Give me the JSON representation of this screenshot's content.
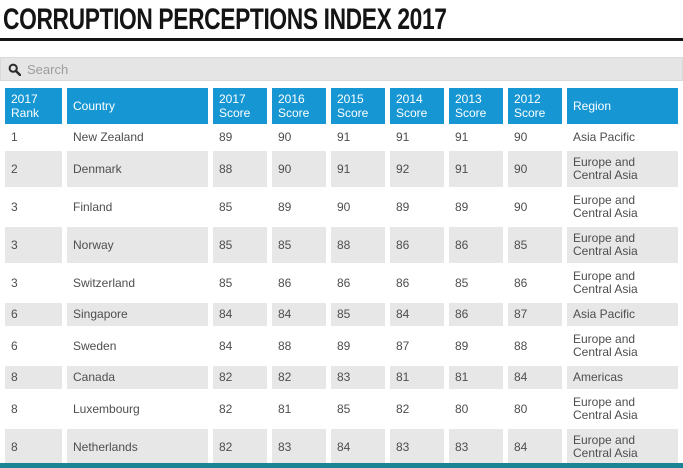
{
  "title": "CORRUPTION PERCEPTIONS INDEX 2017",
  "search": {
    "placeholder": "Search",
    "icon": "magnifier"
  },
  "table": {
    "columns": [
      "2017 Rank",
      "Country",
      "2017 Score",
      "2016 Score",
      "2015 Score",
      "2014 Score",
      "2013 Score",
      "2012 Score",
      "Region"
    ],
    "fields": [
      "rank",
      "country",
      "s2017",
      "s2016",
      "s2015",
      "s2014",
      "s2013",
      "s2012",
      "region"
    ],
    "rows": [
      {
        "rank": "1",
        "country": "New Zealand",
        "s2017": "89",
        "s2016": "90",
        "s2015": "91",
        "s2014": "91",
        "s2013": "91",
        "s2012": "90",
        "region": "Asia Pacific"
      },
      {
        "rank": "2",
        "country": "Denmark",
        "s2017": "88",
        "s2016": "90",
        "s2015": "91",
        "s2014": "92",
        "s2013": "91",
        "s2012": "90",
        "region": "Europe and Central Asia"
      },
      {
        "rank": "3",
        "country": "Finland",
        "s2017": "85",
        "s2016": "89",
        "s2015": "90",
        "s2014": "89",
        "s2013": "89",
        "s2012": "90",
        "region": "Europe and Central Asia"
      },
      {
        "rank": "3",
        "country": "Norway",
        "s2017": "85",
        "s2016": "85",
        "s2015": "88",
        "s2014": "86",
        "s2013": "86",
        "s2012": "85",
        "region": "Europe and Central Asia"
      },
      {
        "rank": "3",
        "country": "Switzerland",
        "s2017": "85",
        "s2016": "86",
        "s2015": "86",
        "s2014": "86",
        "s2013": "85",
        "s2012": "86",
        "region": "Europe and Central Asia"
      },
      {
        "rank": "6",
        "country": "Singapore",
        "s2017": "84",
        "s2016": "84",
        "s2015": "85",
        "s2014": "84",
        "s2013": "86",
        "s2012": "87",
        "region": "Asia Pacific"
      },
      {
        "rank": "6",
        "country": "Sweden",
        "s2017": "84",
        "s2016": "88",
        "s2015": "89",
        "s2014": "87",
        "s2013": "89",
        "s2012": "88",
        "region": "Europe and Central Asia"
      },
      {
        "rank": "8",
        "country": "Canada",
        "s2017": "82",
        "s2016": "82",
        "s2015": "83",
        "s2014": "81",
        "s2013": "81",
        "s2012": "84",
        "region": "Americas"
      },
      {
        "rank": "8",
        "country": "Luxembourg",
        "s2017": "82",
        "s2016": "81",
        "s2015": "85",
        "s2014": "82",
        "s2013": "80",
        "s2012": "80",
        "region": "Europe and Central Asia"
      },
      {
        "rank": "8",
        "country": "Netherlands",
        "s2017": "82",
        "s2016": "83",
        "s2015": "84",
        "s2014": "83",
        "s2013": "83",
        "s2012": "84",
        "region": "Europe and Central Asia"
      }
    ]
  },
  "colors": {
    "header_bg": "#1697D4",
    "stripe_bg": "#E7E7E7",
    "search_bg": "#E5E5E5",
    "footer_bar": "#1A8494",
    "title_color": "#141414"
  }
}
